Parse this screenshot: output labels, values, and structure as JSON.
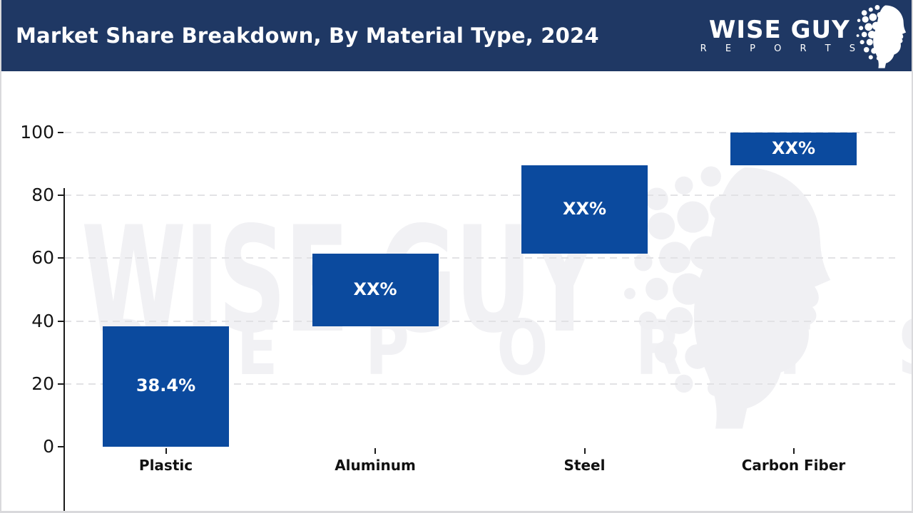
{
  "header": {
    "title": "Market Share Breakdown, By Material Type, 2024",
    "logo": {
      "line1": "WISE GUY",
      "line2": "R E P O R T S"
    }
  },
  "watermark": {
    "line1": "WISE GUY",
    "line2": "R E P O R T S"
  },
  "colors": {
    "header_bg": "#1f3864",
    "bar": "#0b4a9e",
    "bar_label": "#ffffff",
    "grid": "#e2e2e5",
    "axis": "#1a1a1a",
    "watermark": "#f1f1f4"
  },
  "chart_data": {
    "type": "bar",
    "subtype": "floating-waterfall",
    "title": "Market Share Breakdown, By Material Type, 2024",
    "categories": [
      "Plastic",
      "Aluminum",
      "Steel",
      "Carbon Fiber"
    ],
    "bars": [
      {
        "category": "Plastic",
        "start": 0,
        "end": 38.4,
        "label": "38.4%"
      },
      {
        "category": "Aluminum",
        "start": 38.4,
        "end": 61.5,
        "label": "XX%"
      },
      {
        "category": "Steel",
        "start": 61.5,
        "end": 89.5,
        "label": "XX%"
      },
      {
        "category": "Carbon Fiber",
        "start": 89.5,
        "end": 100,
        "label": "XX%"
      }
    ],
    "yticks": [
      0,
      20,
      40,
      60,
      80,
      100
    ],
    "ylim": [
      0,
      105
    ],
    "xlabel": "",
    "ylabel": "",
    "grid": "horizontal-dashed",
    "legend": "none",
    "bar_color": "#0b4a9e"
  }
}
